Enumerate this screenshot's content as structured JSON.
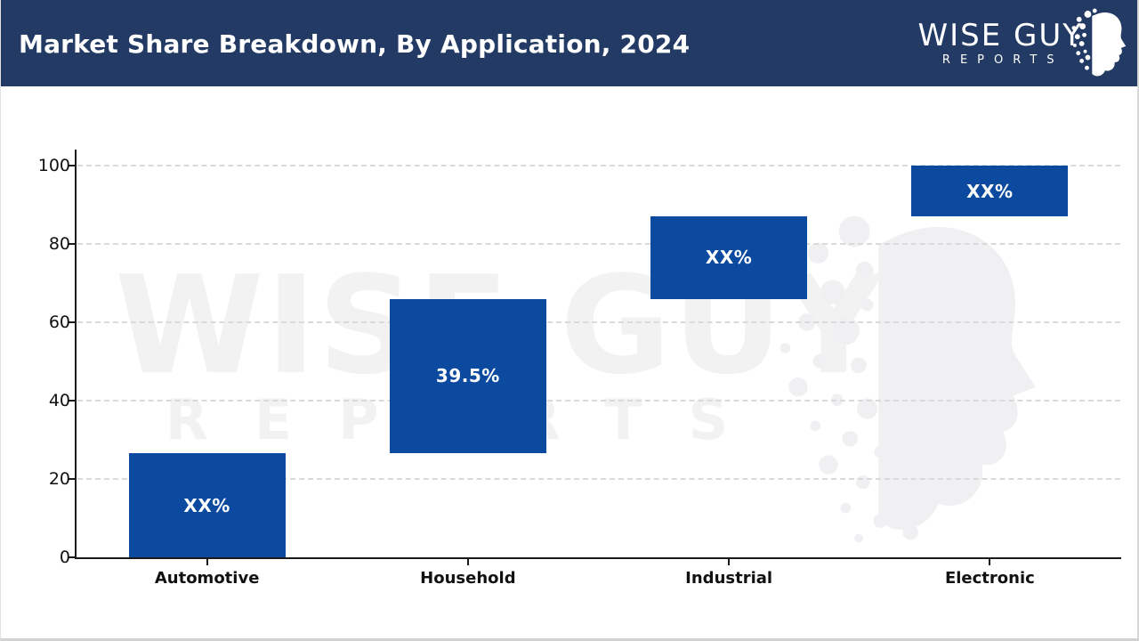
{
  "header": {
    "title": "Market Share Breakdown, By Application, 2024",
    "logo": {
      "line1": "WISE GUY",
      "line2": "REPORTS"
    }
  },
  "watermark": {
    "line1": "WISE GUY",
    "line2": "REPORTS"
  },
  "colors": {
    "header_bg": "#223A64",
    "bar": "#0B4A9E",
    "grid": "#DADADA",
    "axis": "#1A1A1A",
    "bar_label": "#FFFFFF",
    "watermark": "#F2F2F3"
  },
  "chart_data": {
    "type": "bar",
    "subtype": "floating-segment-breakdown",
    "title": "Market Share Breakdown, By Application, 2024",
    "xlabel": "",
    "ylabel": "",
    "categories": [
      "Automotive",
      "Household",
      "Industrial",
      "Electronic"
    ],
    "segments": [
      {
        "category": "Automotive",
        "start": 0,
        "end": 26.5,
        "value_label": "XX%"
      },
      {
        "category": "Household",
        "start": 26.5,
        "end": 66,
        "value_label": "39.5%"
      },
      {
        "category": "Industrial",
        "start": 66,
        "end": 87,
        "value_label": "XX%"
      },
      {
        "category": "Electronic",
        "start": 87,
        "end": 100,
        "value_label": "XX%"
      }
    ],
    "yticks": [
      0,
      20,
      40,
      60,
      80,
      100
    ],
    "ylim": [
      0,
      104
    ],
    "grid": "horizontal-dashed",
    "legend": "none"
  }
}
